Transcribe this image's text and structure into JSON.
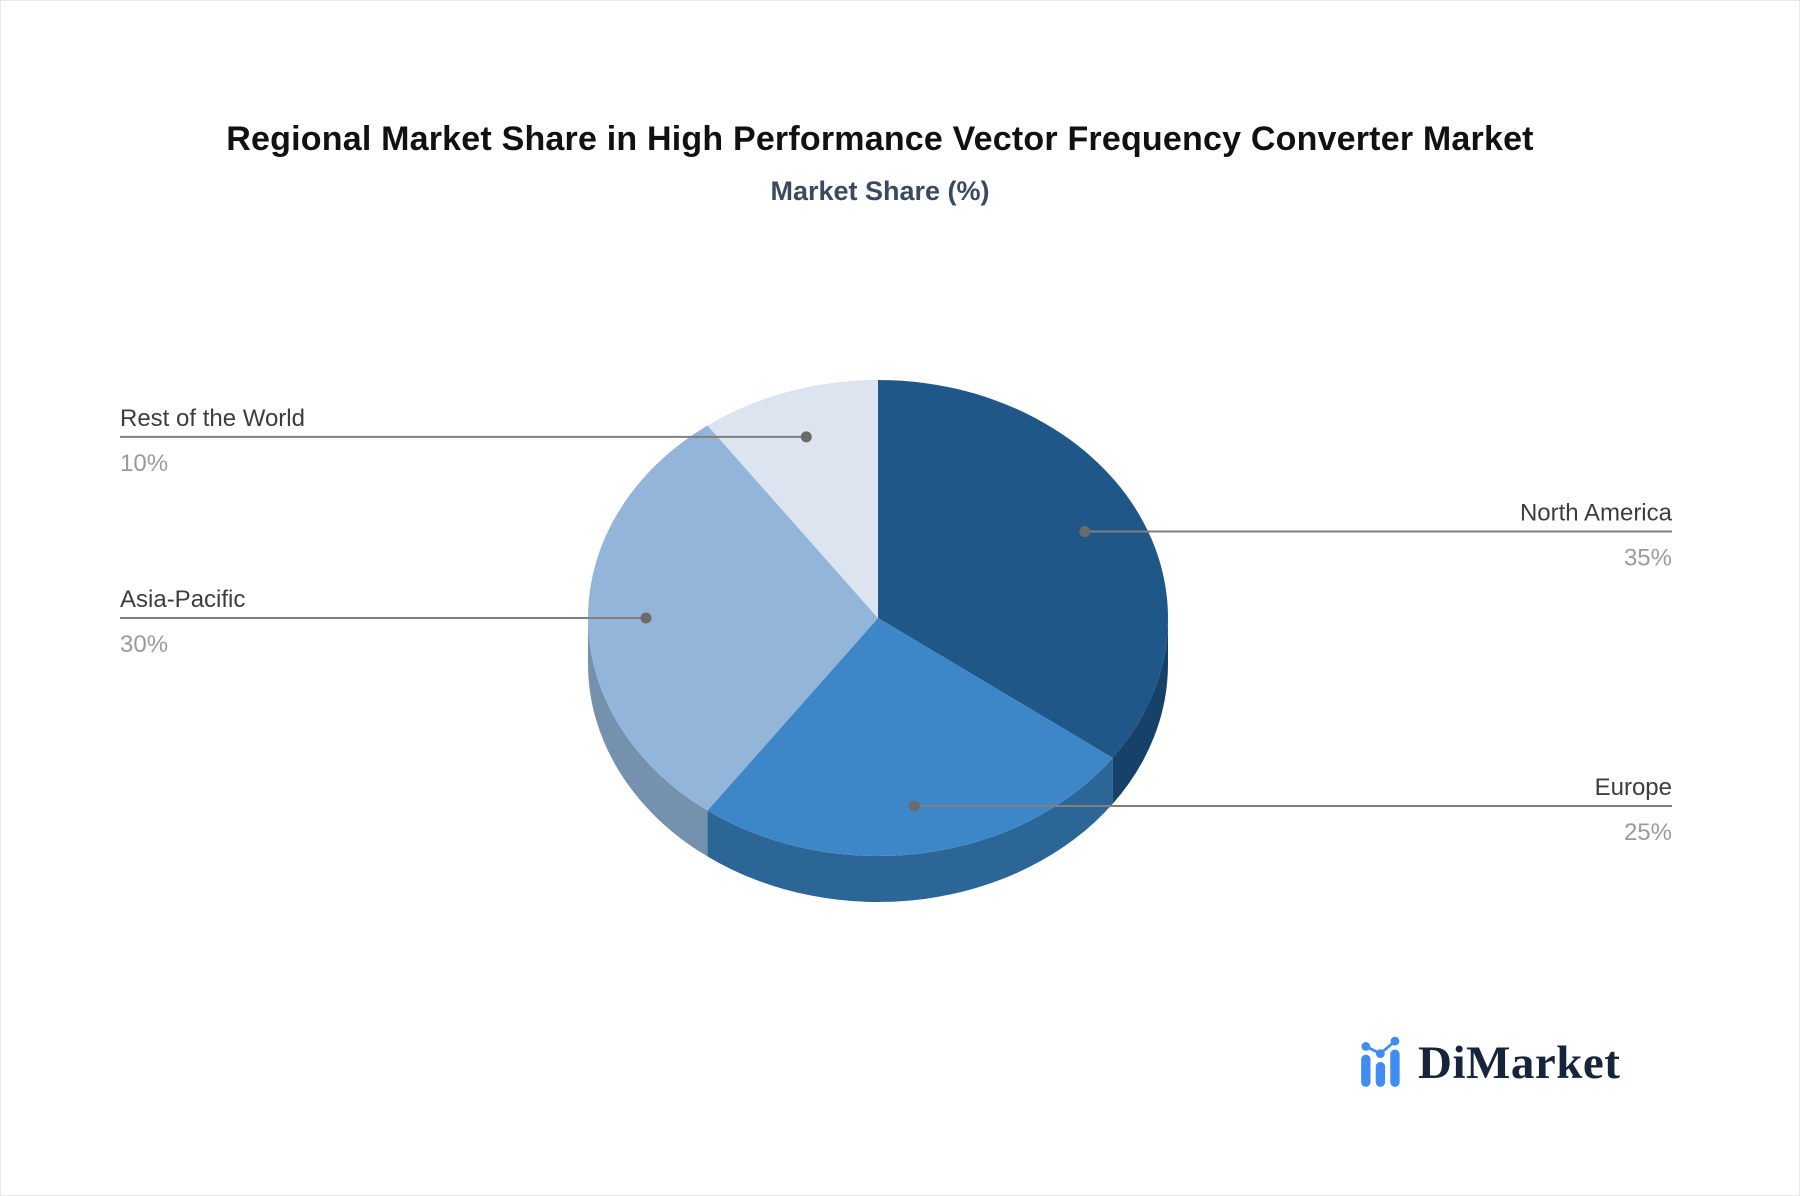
{
  "title": "Regional Market Share in High Performance Vector Frequency Converter Market",
  "subtitle": "Market Share (%)",
  "chart_data": {
    "type": "pie",
    "style": "3d",
    "unit": "%",
    "direction": "clockwise",
    "start_angle": "12 o'clock",
    "title": "Regional Market Share in High Performance Vector Frequency Converter Market",
    "subtitle": "Market Share (%)",
    "legend": "none",
    "labels_layout": "callout-lines",
    "slices": [
      {
        "label": "North America",
        "value": 35,
        "pct_text": "35%",
        "color": "#1F5788",
        "side_color": "#16426A",
        "label_side": "right"
      },
      {
        "label": "Europe",
        "value": 25,
        "pct_text": "25%",
        "color": "#3D87C8",
        "side_color": "#2C6697",
        "label_side": "right"
      },
      {
        "label": "Asia-Pacific",
        "value": 30,
        "pct_text": "30%",
        "color": "#94B5DA",
        "side_color": "#7492AE",
        "label_side": "left"
      },
      {
        "label": "Rest of the World",
        "value": 10,
        "pct_text": "10%",
        "color": "#DCE4EF",
        "side_color": "#B9C4D4",
        "label_side": "left"
      }
    ],
    "label_color": "#3D3D3D",
    "pct_color": "#9B9B9B",
    "leader_line_color": "#7F7F7F",
    "leader_dot_color": "#6B6B6B"
  },
  "logo": {
    "text": "DiMarket",
    "icon": "bar-chart-logo",
    "icon_color": "#3F8CF3",
    "text_color": "#16243C"
  }
}
